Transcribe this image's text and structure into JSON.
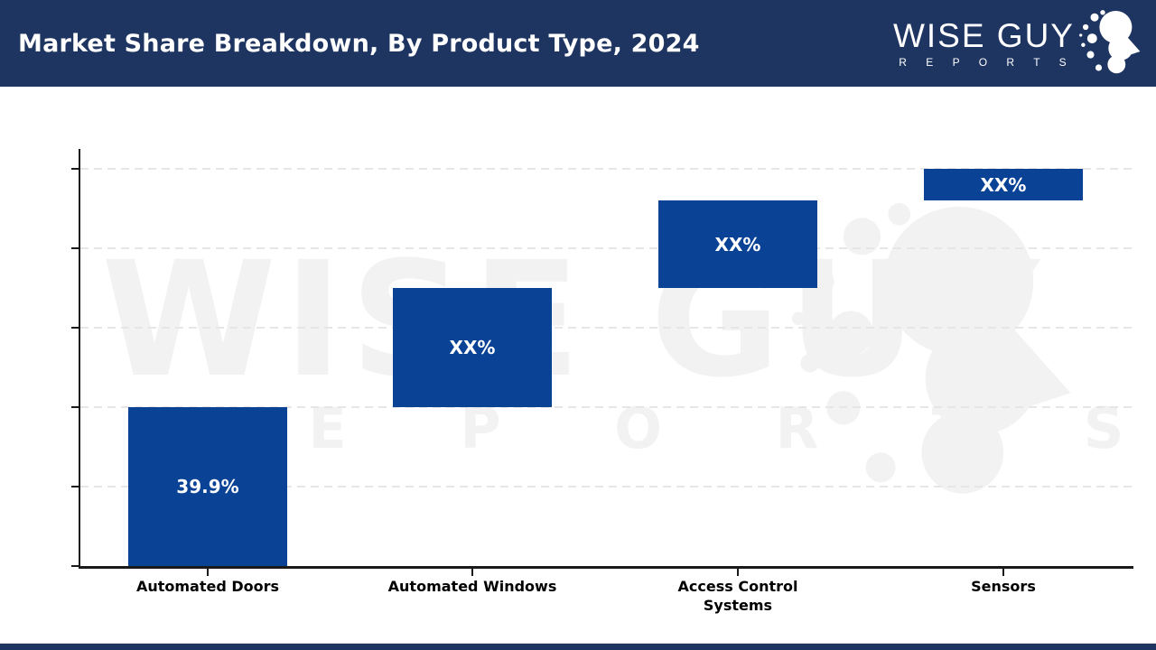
{
  "header": {
    "title": "Market Share Breakdown, By Product Type, 2024",
    "logo": {
      "name": "Wise Guy Reports",
      "line1": "WISE GUY",
      "line2": "R E P O R T S"
    }
  },
  "watermark": {
    "line1": "WISE GUY",
    "line2": "R E P O R T S"
  },
  "chart_data": {
    "type": "bar",
    "subtype": "waterfall",
    "title": "Market Share Breakdown, By Product Type, 2024",
    "categories": [
      "Automated Doors",
      "Automated Windows",
      "Access Control Systems",
      "Sensors"
    ],
    "tick_labels": [
      "Automated Doors",
      "Automated Windows",
      "Access Control\nSystems",
      "Sensors"
    ],
    "bars": [
      {
        "category": "Automated Doors",
        "start": 0,
        "end": 39.9,
        "label": "39.9%"
      },
      {
        "category": "Automated Windows",
        "start": 40,
        "end": 70,
        "label": "XX%"
      },
      {
        "category": "Access Control Systems",
        "start": 70,
        "end": 92,
        "label": "XX%"
      },
      {
        "category": "Sensors",
        "start": 92,
        "end": 100,
        "label": "XX%"
      }
    ],
    "xlabel": "",
    "ylabel": "",
    "yticks": [
      0,
      20,
      40,
      60,
      80,
      100
    ],
    "ylim": [
      0,
      105
    ],
    "grid": "horizontal-dashed",
    "legend": "none",
    "bar_color": "#0a4296"
  },
  "colors": {
    "header_bg": "#1e3461",
    "bar": "#0a4296",
    "watermark": "#f2f2f2",
    "gridline": "#e6e6e6",
    "axis": "#1a1a1a"
  }
}
